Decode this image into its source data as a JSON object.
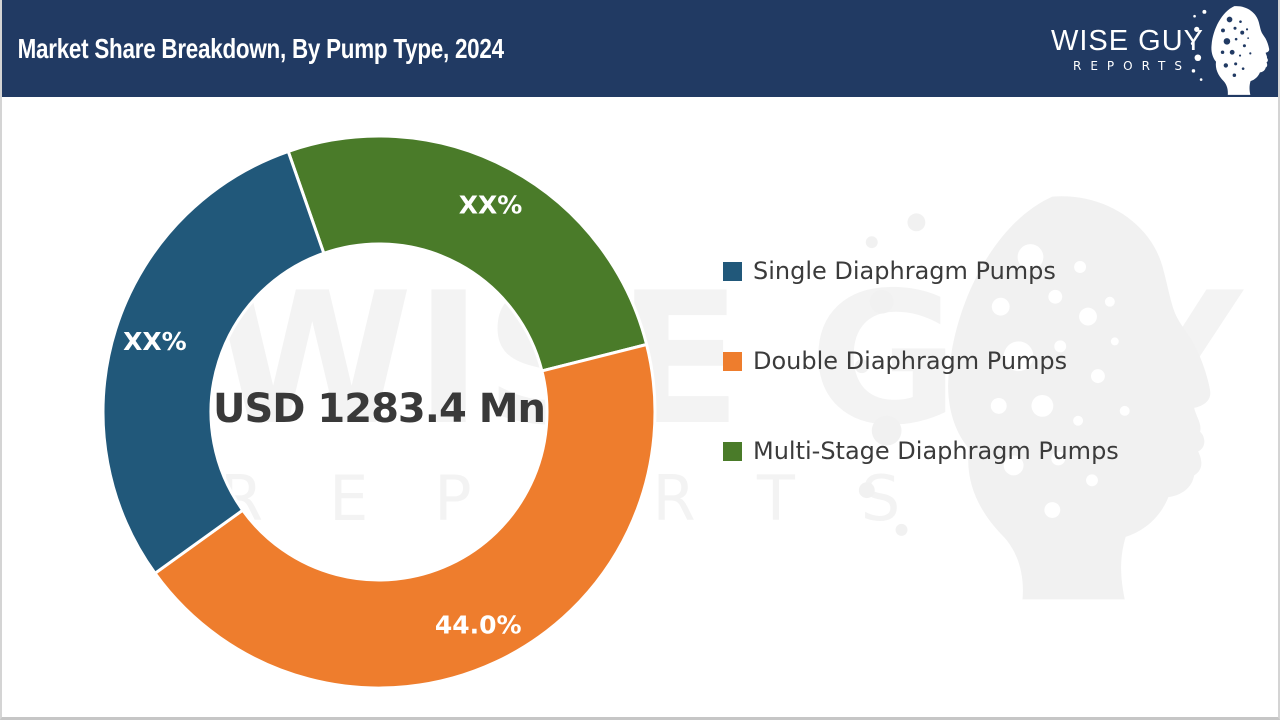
{
  "header": {
    "title": "Market Share Breakdown, By Pump Type, 2024",
    "logo": {
      "title": "WISE GUY",
      "subtitle": "REPORTS"
    }
  },
  "watermark": {
    "title": "WISE GUY",
    "subtitle": "REPORTS"
  },
  "chart_data": {
    "type": "pie",
    "variant": "donut",
    "title": "Market Share Breakdown, By Pump Type, 2024",
    "center_label": "USD 1283.4 Mn",
    "start_angle_deg": -19.2,
    "clockwise": true,
    "legend_position": "right",
    "segments": [
      {
        "name": "Multi-Stage Diaphragm Pumps",
        "value_pct": 26.4,
        "label": "XX%",
        "color": "#4A7B29"
      },
      {
        "name": "Double Diaphragm Pumps",
        "value_pct": 44.0,
        "label": "44.0%",
        "color": "#EE7D2D"
      },
      {
        "name": "Single Diaphragm Pumps",
        "value_pct": 29.6,
        "label": "XX%",
        "color": "#21587A"
      }
    ],
    "legend": [
      {
        "label": "Single Diaphragm Pumps",
        "color": "#21587A"
      },
      {
        "label": "Double Diaphragm Pumps",
        "color": "#EE7D2D"
      },
      {
        "label": "Multi-Stage Diaphragm Pumps",
        "color": "#4A7B29"
      }
    ]
  },
  "colors": {
    "header_bg": "#213A63",
    "segment_label_text": "#FFFFFF",
    "center_text": "#393939",
    "legend_text": "#3B3B3B",
    "watermark": "#F3F3F3",
    "border": "#C6C6C6",
    "background": "#FFFFFF"
  }
}
